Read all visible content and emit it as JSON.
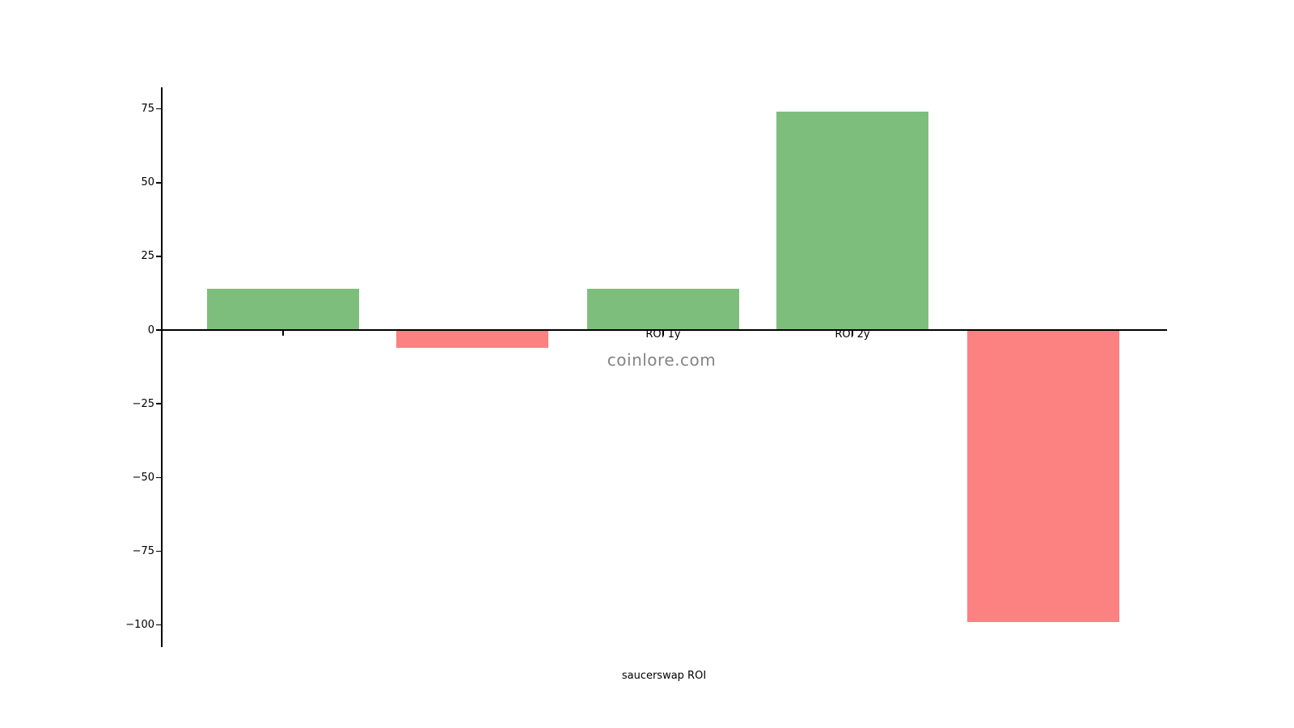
{
  "chart_data": {
    "type": "bar",
    "title": "",
    "xlabel": "saucerswap ROI",
    "ylabel": "",
    "categories": [
      "",
      "",
      "ROI 1y",
      "ROI 2y",
      ""
    ],
    "values": [
      14,
      -6,
      14,
      74,
      -99
    ],
    "series": [
      {
        "name": "saucerswap ROI",
        "values": [
          14,
          -6,
          14,
          74,
          -99
        ]
      }
    ],
    "yticks": [
      75,
      50,
      25,
      0,
      -25,
      -50,
      -75,
      -100
    ],
    "ylim": [
      -108,
      83
    ],
    "grid": false,
    "legend_position": "none",
    "positive_color": "#7dbe7d",
    "negative_color": "#fc8181",
    "axis_color": "#000000",
    "watermark": "coinlore.com",
    "watermark_color": "#848484"
  }
}
